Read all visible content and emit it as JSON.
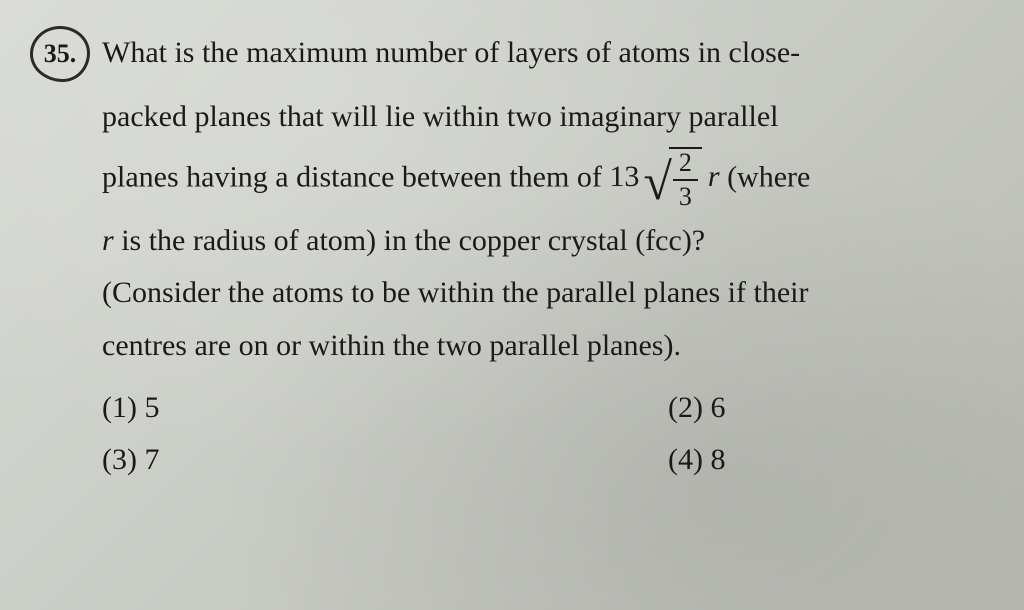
{
  "question": {
    "number": "35.",
    "line1_start": "What is the maximum number of layers of atoms in close-",
    "line2": "packed planes that will lie within two imaginary parallel",
    "line3_start": "planes having a distance between them of ",
    "formula": {
      "coefficient": "13",
      "fraction_numerator": "2",
      "fraction_denominator": "3",
      "variable": "r"
    },
    "line3_end": " (where",
    "line4_start_var": "r",
    "line4_rest": " is the radius of atom) in the copper crystal (fcc)?",
    "line5": "(Consider the atoms to be within the parallel planes if their",
    "line6": "centres are on or within the two parallel planes)."
  },
  "options": [
    {
      "label": "(1) 5"
    },
    {
      "label": "(2) 6"
    },
    {
      "label": "(3) 7"
    },
    {
      "label": "(4) 8"
    }
  ],
  "styling": {
    "background_color": "#d0d2cb",
    "text_color": "#1a1a1a",
    "font_family": "Times New Roman",
    "question_fontsize": 30,
    "number_fontsize": 26,
    "circle_border_width": 3
  }
}
